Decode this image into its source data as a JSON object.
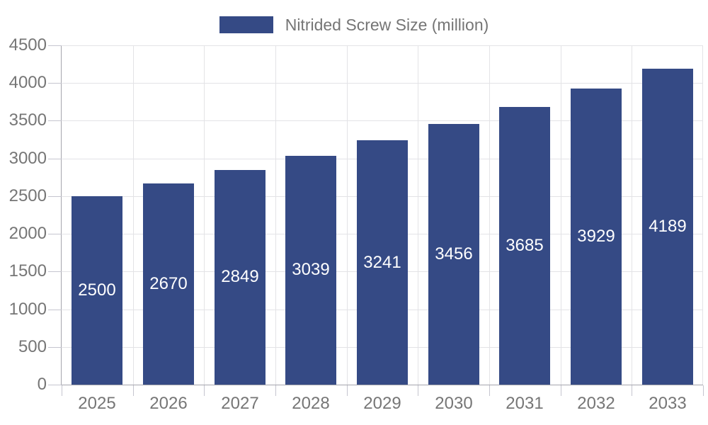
{
  "chart_data": {
    "type": "bar",
    "title": "",
    "legend": "Nitrided Screw Size (million)",
    "legend_position": "top-center",
    "categories": [
      "2025",
      "2026",
      "2027",
      "2028",
      "2029",
      "2030",
      "2031",
      "2032",
      "2033"
    ],
    "series": [
      {
        "name": "Nitrided Screw Size (million)",
        "values": [
          2500,
          2670,
          2849,
          3039,
          3241,
          3456,
          3685,
          3929,
          4189
        ]
      }
    ],
    "bar_value_labels": [
      "2500",
      "2670",
      "2849",
      "3039",
      "3241",
      "3456",
      "3685",
      "3929",
      "4189"
    ],
    "bar_value_label_placement": "inside-center",
    "xlabel": "",
    "ylabel": "",
    "ylim": [
      0,
      4500
    ],
    "ytick_interval": 500,
    "y_ticks": [
      0,
      500,
      1000,
      1500,
      2000,
      2500,
      3000,
      3500,
      4000,
      4500
    ],
    "grid": true
  },
  "colors": {
    "bar": "#354a85",
    "gridline": "#e3e3e6",
    "axis_line": "#a5a5ad",
    "tick": "#c5c5cf",
    "axis_text": "#767676",
    "legend_text": "#757575",
    "bar_label_text": "#ffffff",
    "background": "#ffffff"
  }
}
